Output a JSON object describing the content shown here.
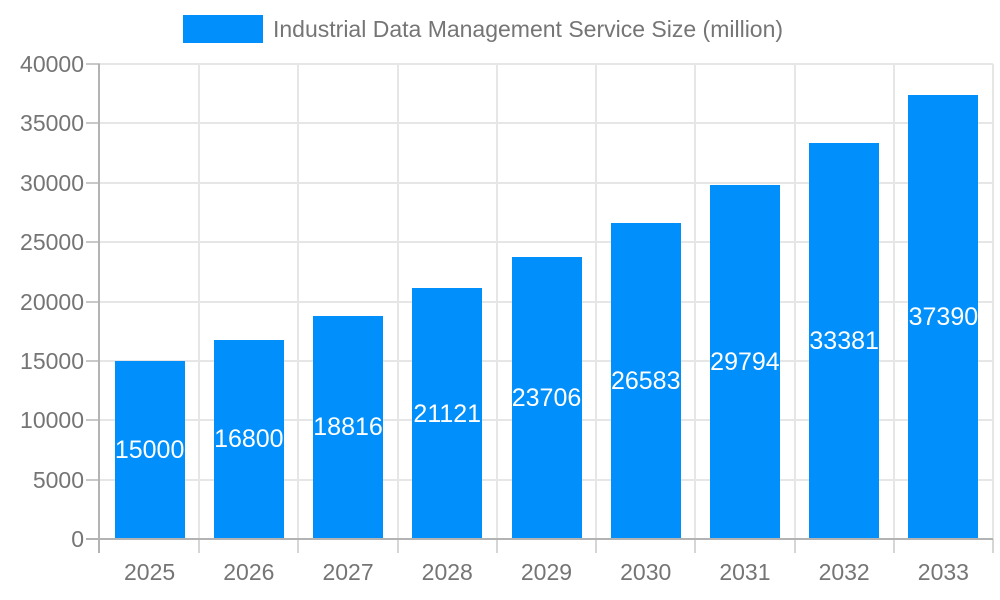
{
  "chart_data": {
    "type": "bar",
    "title": "Industrial Data Management Service Size (million)",
    "categories": [
      "2025",
      "2026",
      "2027",
      "2028",
      "2029",
      "2030",
      "2031",
      "2032",
      "2033"
    ],
    "values": [
      15000,
      16800,
      18816,
      21121,
      23706,
      26583,
      29794,
      33381,
      37390
    ],
    "xlabel": "",
    "ylabel": "",
    "ylim": [
      0,
      40000
    ],
    "yticks": [
      0,
      5000,
      10000,
      15000,
      20000,
      25000,
      30000,
      35000,
      40000
    ],
    "grid": true,
    "legend_position": "top-center",
    "bar_value_labels": "centered-inside-white",
    "colors": {
      "bar": "#008FFB",
      "axis_text": "#757575",
      "grid_line": "#e6e6e6",
      "axis_line": "#b3b3b3",
      "tick": "#c9c9c9",
      "bar_label": "#ffffff",
      "background": "#ffffff"
    }
  }
}
